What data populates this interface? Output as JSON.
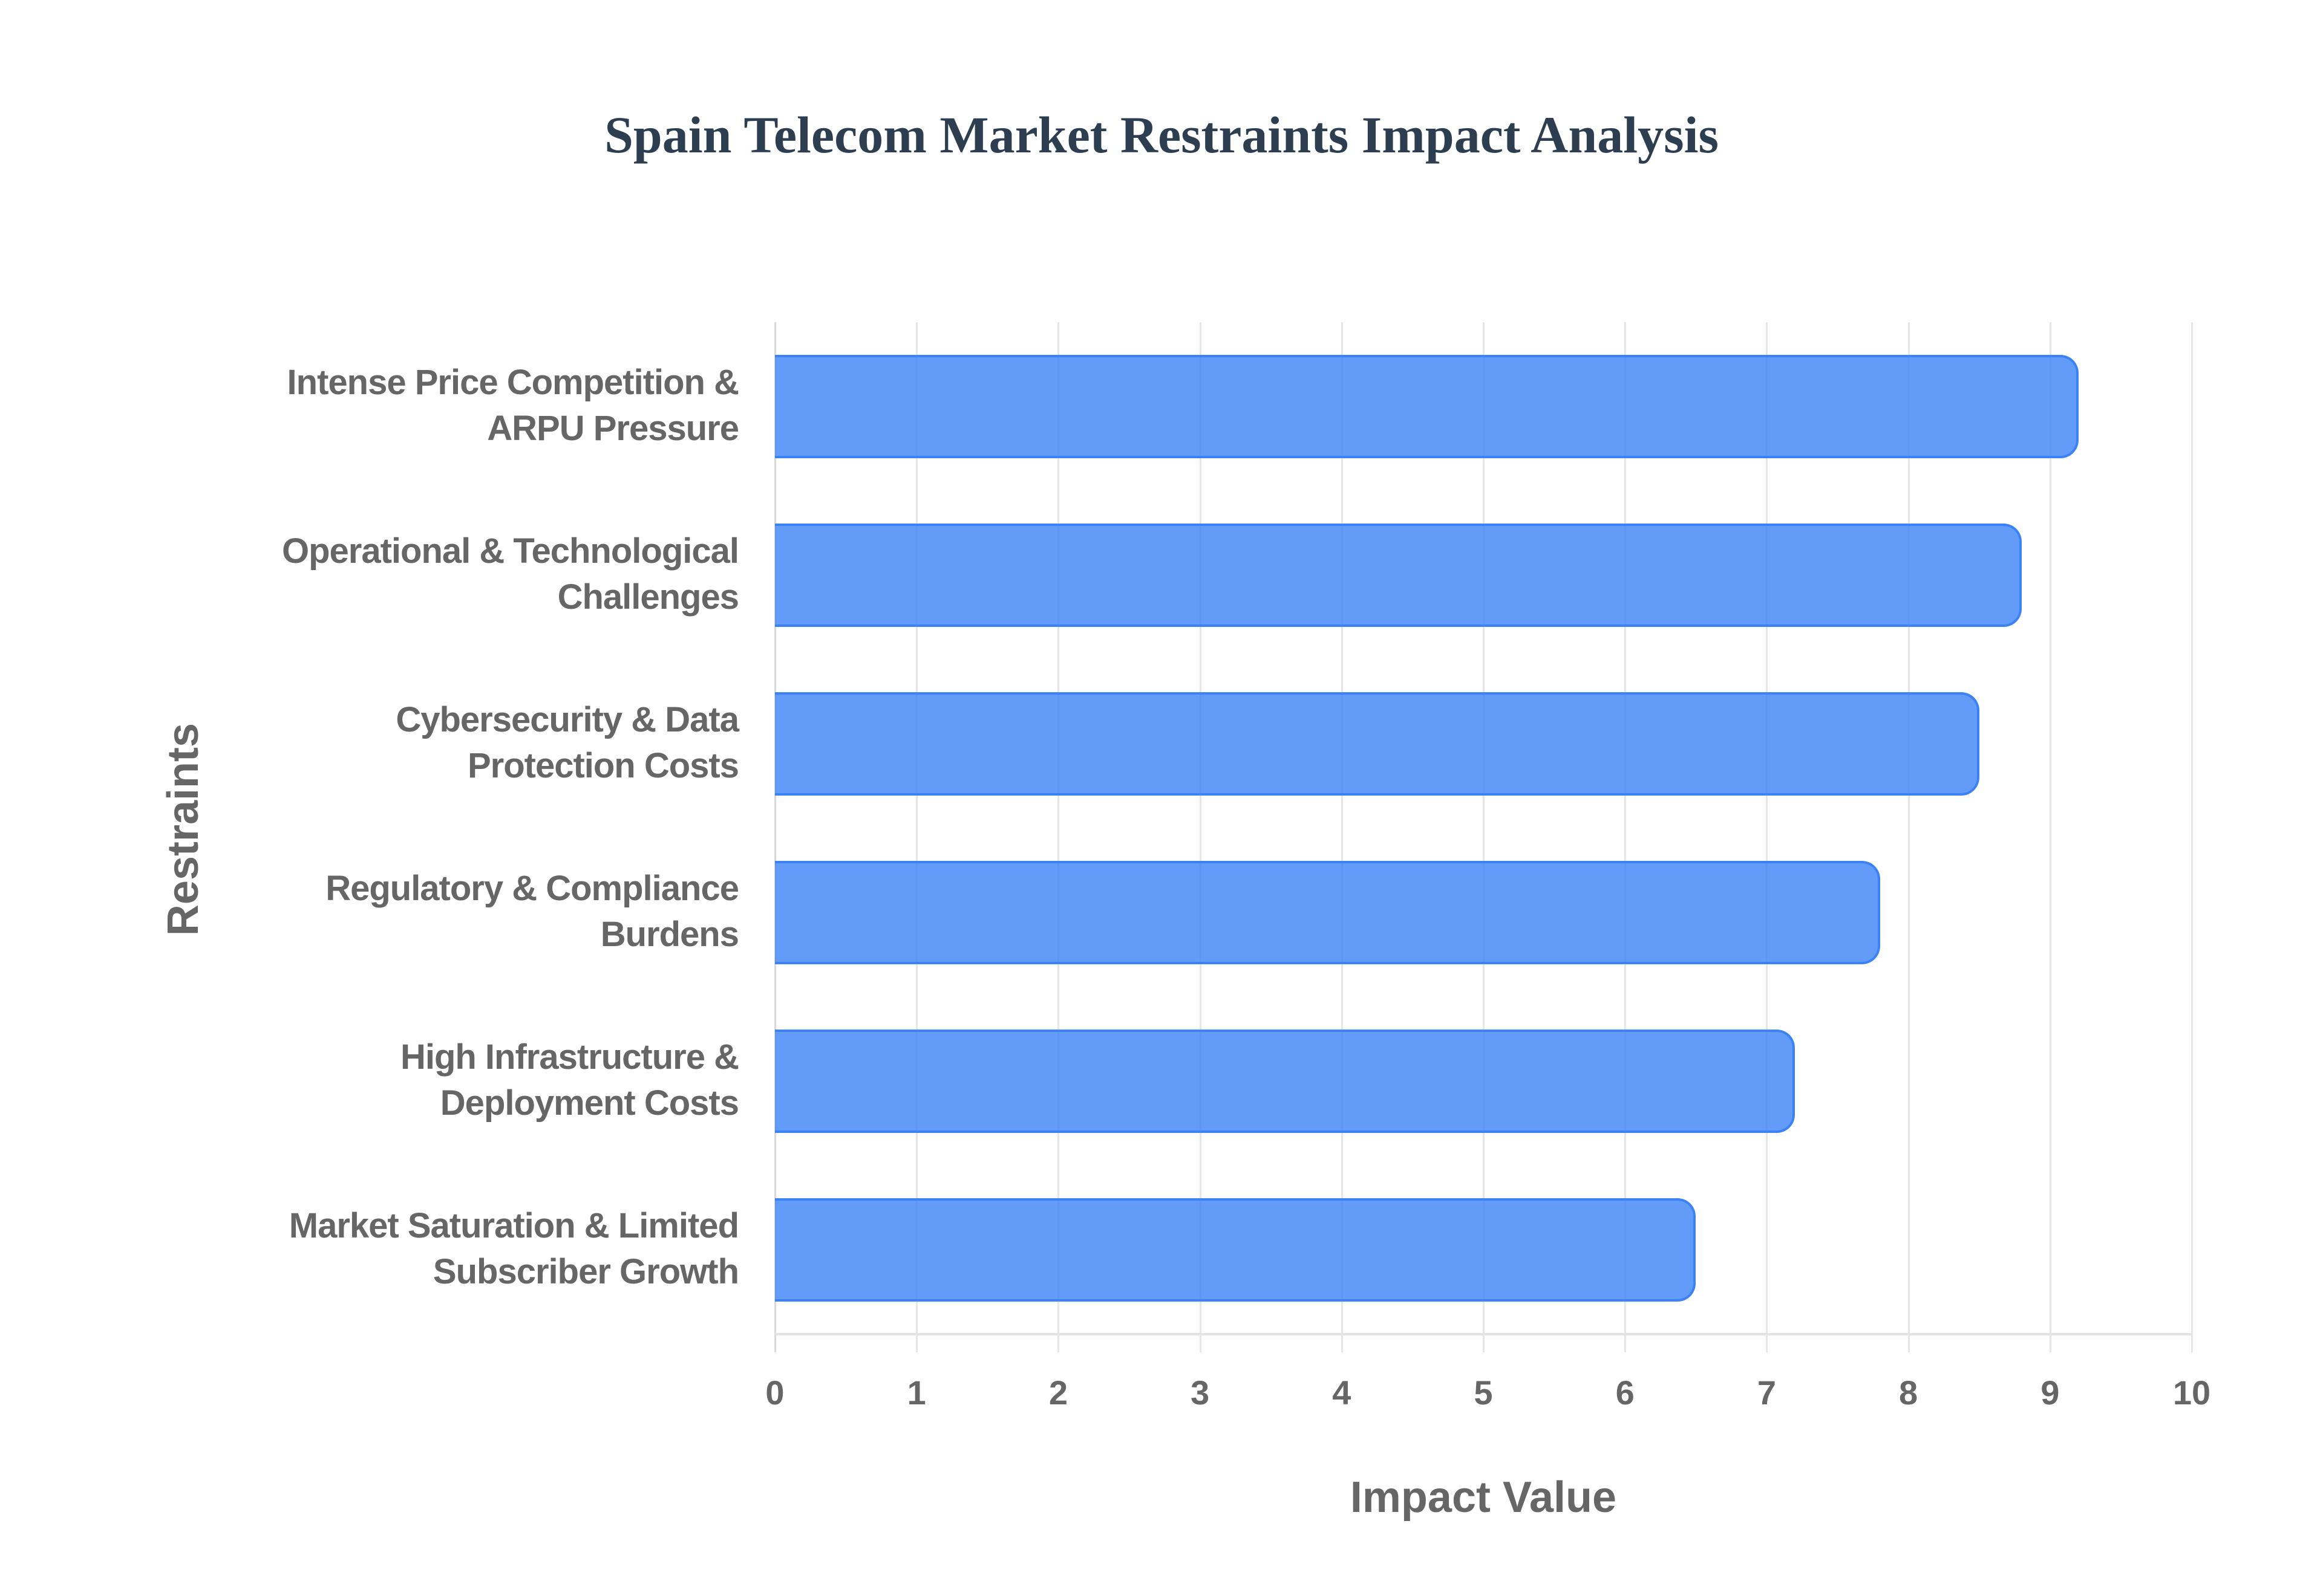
{
  "chart_data": {
    "type": "bar",
    "orientation": "horizontal",
    "title": "Spain Telecom Market Restraints Impact Analysis",
    "xlabel": "Impact Value",
    "ylabel": "Restraints",
    "categories": [
      "Intense Price Competition & ARPU Pressure",
      "Operational & Technological Challenges",
      "Cybersecurity & Data Protection Costs",
      "Regulatory & Compliance Burdens",
      "High Infrastructure & Deployment Costs",
      "Market Saturation & Limited Subscriber Growth"
    ],
    "category_lines": [
      [
        "Intense Price Competition &",
        "ARPU Pressure"
      ],
      [
        "Operational & Technological",
        "Challenges"
      ],
      [
        "Cybersecurity & Data",
        "Protection Costs"
      ],
      [
        "Regulatory & Compliance",
        "Burdens"
      ],
      [
        "High Infrastructure &",
        "Deployment Costs"
      ],
      [
        "Market Saturation & Limited",
        "Subscriber Growth"
      ]
    ],
    "values": [
      9.2,
      8.8,
      8.5,
      7.8,
      7.2,
      6.5
    ],
    "xlim": [
      0,
      10
    ],
    "xticks": [
      "0",
      "1",
      "2",
      "3",
      "4",
      "5",
      "6",
      "7",
      "8",
      "9",
      "10"
    ],
    "grid": true,
    "legend": null,
    "colors": {
      "bar_fill": "rgba(59,130,246,0.8)",
      "bar_border": "#3b82f6",
      "title": "#2c3e50",
      "axis_text": "#666666",
      "grid": "#e6e6e6"
    }
  }
}
